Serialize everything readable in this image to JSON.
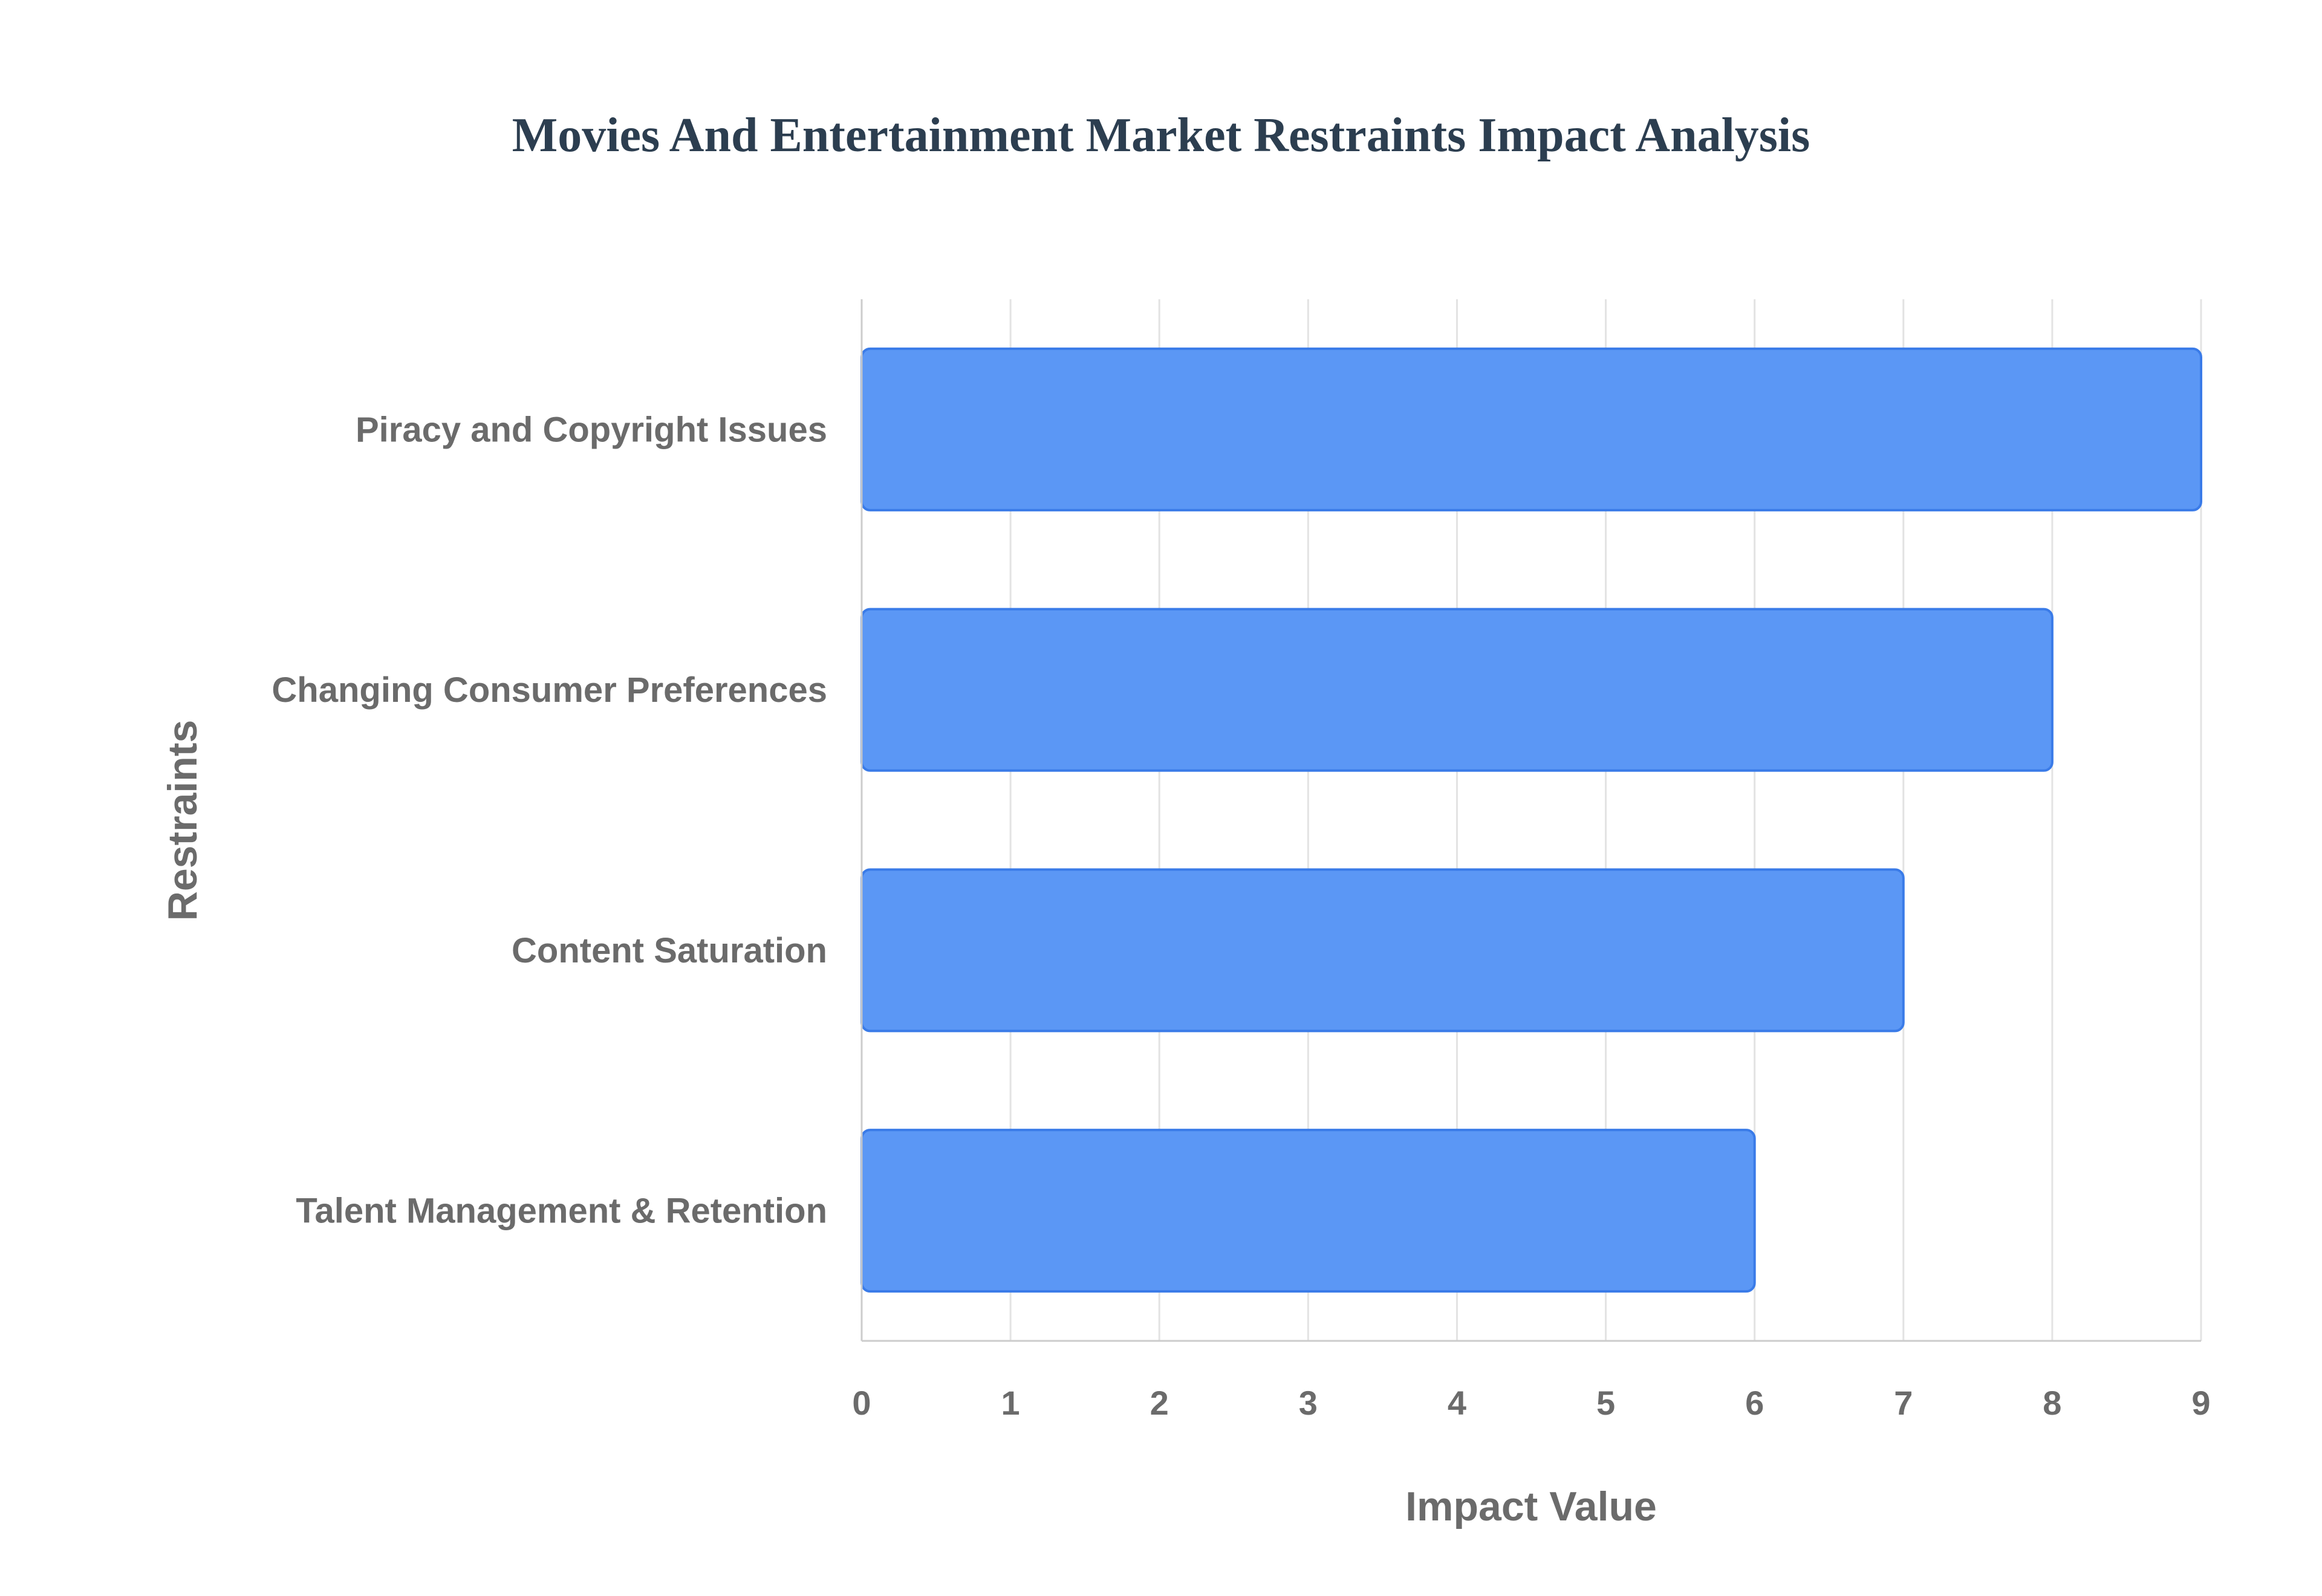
{
  "chart_data": {
    "type": "bar",
    "orientation": "horizontal",
    "title": "Movies And Entertainment Market Restraints Impact Analysis",
    "xlabel": "Impact Value",
    "ylabel": "Restraints",
    "categories": [
      "Piracy and Copyright Issues",
      "Changing Consumer Preferences",
      "Content Saturation",
      "Talent Management & Retention"
    ],
    "values": [
      9,
      8,
      7,
      6
    ],
    "xlim": [
      0,
      9
    ],
    "xticks": [
      "0",
      "1",
      "2",
      "3",
      "4",
      "5",
      "6",
      "7",
      "8",
      "9"
    ],
    "grid": true,
    "legend": "none",
    "bar_color": "#5b97f5",
    "bar_border_color": "#3a7be8"
  }
}
